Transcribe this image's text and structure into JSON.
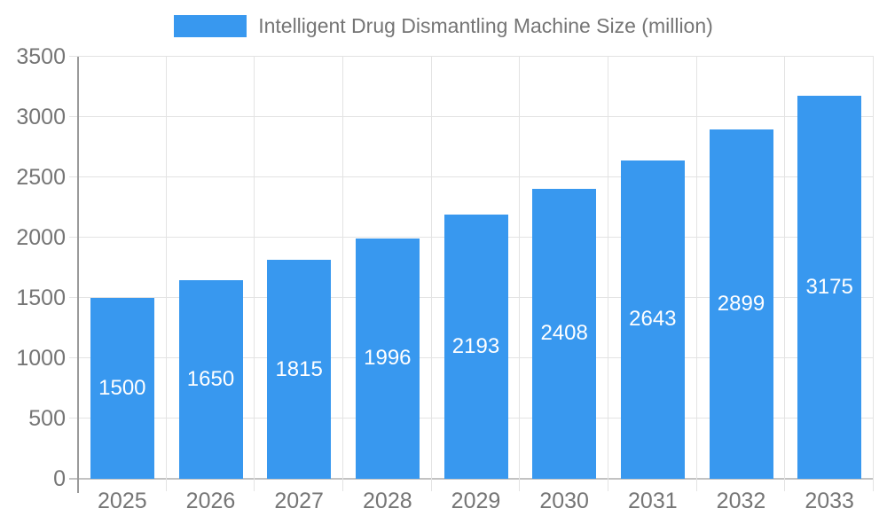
{
  "chart_data": {
    "type": "bar",
    "title": "Intelligent Drug Dismantling Machine Size (million)",
    "categories": [
      "2025",
      "2026",
      "2027",
      "2028",
      "2029",
      "2030",
      "2031",
      "2032",
      "2033"
    ],
    "values": [
      1500,
      1650,
      1815,
      1996,
      2193,
      2408,
      2643,
      2899,
      3175
    ],
    "xlabel": "",
    "ylabel": "",
    "ylim": [
      0,
      3500
    ],
    "yticks": [
      0,
      500,
      1000,
      1500,
      2000,
      2500,
      3000,
      3500
    ],
    "grid": true,
    "legend_position": "top",
    "bar_color": "#3898EF",
    "bar_label_color": "#FFFFFF",
    "axis_text_color": "#757575",
    "grid_color": "#E3E3E3",
    "baseline_color": "#C2C2C2",
    "axis_line_color": "#9A9A9A",
    "background": "#FFFFFF"
  }
}
